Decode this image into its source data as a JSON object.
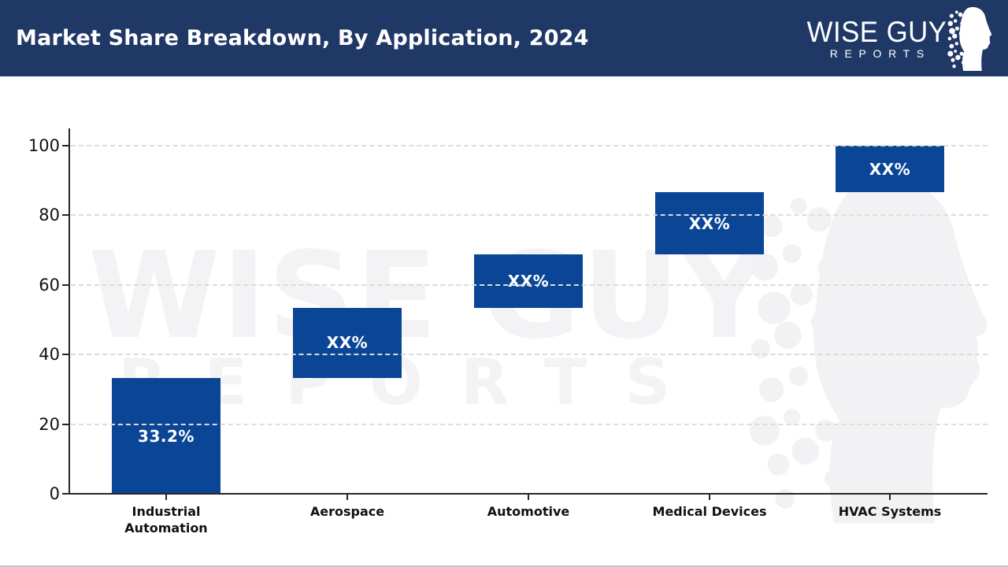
{
  "header": {
    "title": "Market Share Breakdown, By Application, 2024",
    "logo": {
      "line1": "WISE GUY",
      "line2": "REPORTS"
    }
  },
  "watermark": {
    "line1": "WISE GUY",
    "line2": "REPORTS"
  },
  "chart_data": {
    "type": "bar",
    "subtype": "waterfall",
    "title": "Market Share Breakdown, By Application, 2024",
    "xlabel": "",
    "ylabel": "",
    "categories": [
      "Industrial Automation",
      "Aerospace",
      "Automotive",
      "Medical Devices",
      "HVAC Systems"
    ],
    "segments": [
      {
        "category": "Industrial Automation",
        "start": 0,
        "end": 33.2,
        "label": "33.2%"
      },
      {
        "category": "Aerospace",
        "start": 33.2,
        "end": 53.5,
        "label": "XX%"
      },
      {
        "category": "Automotive",
        "start": 53.5,
        "end": 68.8,
        "label": "XX%"
      },
      {
        "category": "Medical Devices",
        "start": 68.8,
        "end": 86.6,
        "label": "XX%"
      },
      {
        "category": "HVAC Systems",
        "start": 86.6,
        "end": 100,
        "label": "XX%"
      }
    ],
    "yticks": [
      0,
      20,
      40,
      60,
      80,
      100
    ],
    "ylim": [
      0,
      105
    ],
    "grid": "horizontal-dashed-above-bars",
    "legend": "none",
    "bar_color": "#0b4596",
    "bar_label_color": "#ffffff"
  },
  "colors": {
    "header_bg": "#203866",
    "bar": "#0b4596",
    "grid": "#dcdcdc",
    "axis": "#262626",
    "watermark": "#f3f3f5"
  }
}
